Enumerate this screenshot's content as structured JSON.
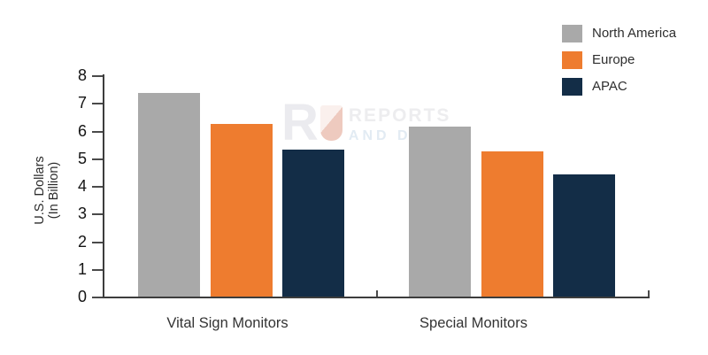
{
  "chart_data": {
    "type": "bar",
    "categories": [
      "Vital Sign Monitors",
      "Special Monitors"
    ],
    "series": [
      {
        "name": "North America",
        "color": "#a9a9a9",
        "values": [
          7.35,
          6.15
        ]
      },
      {
        "name": "Europe",
        "color": "#ee7c2f",
        "values": [
          6.25,
          5.25
        ]
      },
      {
        "name": "APAC",
        "color": "#132d47",
        "values": [
          5.3,
          4.4
        ]
      }
    ],
    "title": "",
    "xlabel": "",
    "ylabel_line1": "U.S. Dollars",
    "ylabel_line2": "(In Billion)",
    "y_ticks": [
      0,
      1,
      2,
      3,
      4,
      5,
      6,
      7,
      8
    ],
    "ylim": [
      0,
      8
    ],
    "grid": false,
    "legend_position": "top-right"
  },
  "watermark": {
    "logo_letter": "R",
    "line1": "REPORTS",
    "line2": "AND DATA"
  }
}
